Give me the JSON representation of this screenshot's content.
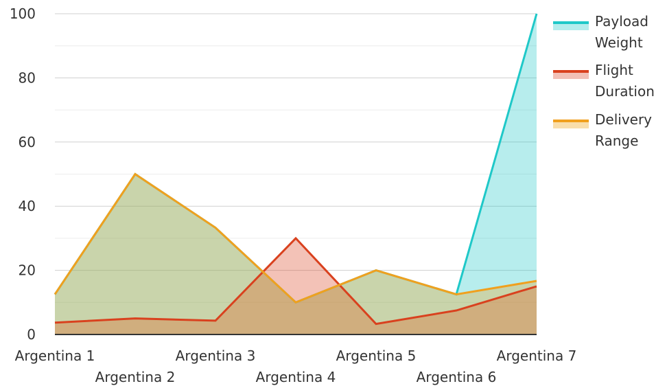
{
  "chart_data": {
    "type": "area",
    "title": "",
    "xlabel": "",
    "ylabel": "",
    "categories": [
      "Argentina 1",
      "Argentina 2",
      "Argentina 3",
      "Argentina 4",
      "Argentina 5",
      "Argentina 6",
      "Argentina 7"
    ],
    "ylim": [
      0,
      100
    ],
    "yticks": [
      "0",
      "20",
      "40",
      "60",
      "80",
      "100"
    ],
    "grid": true,
    "legend_position": "right",
    "series": [
      {
        "name": "Payload Weight",
        "legend_lines": [
          "Payload",
          "Weight"
        ],
        "values": [
          12.5,
          50,
          33.3,
          10,
          20,
          12.5,
          100
        ],
        "color": "#1fc8c8",
        "fill": "#b4eded"
      },
      {
        "name": "Flight Duration",
        "legend_lines": [
          "Flight",
          "Duration"
        ],
        "values": [
          3.7,
          5,
          4.3,
          30,
          3.3,
          7.5,
          15
        ],
        "color": "#d9411e",
        "fill": "#f2c0b6"
      },
      {
        "name": "Delivery Range",
        "legend_lines": [
          "Delivery",
          "Range"
        ],
        "values": [
          12.5,
          50,
          33.3,
          10,
          20,
          12.5,
          16.7
        ],
        "color": "#f0a01e",
        "fill": "#f9deaa"
      }
    ]
  }
}
